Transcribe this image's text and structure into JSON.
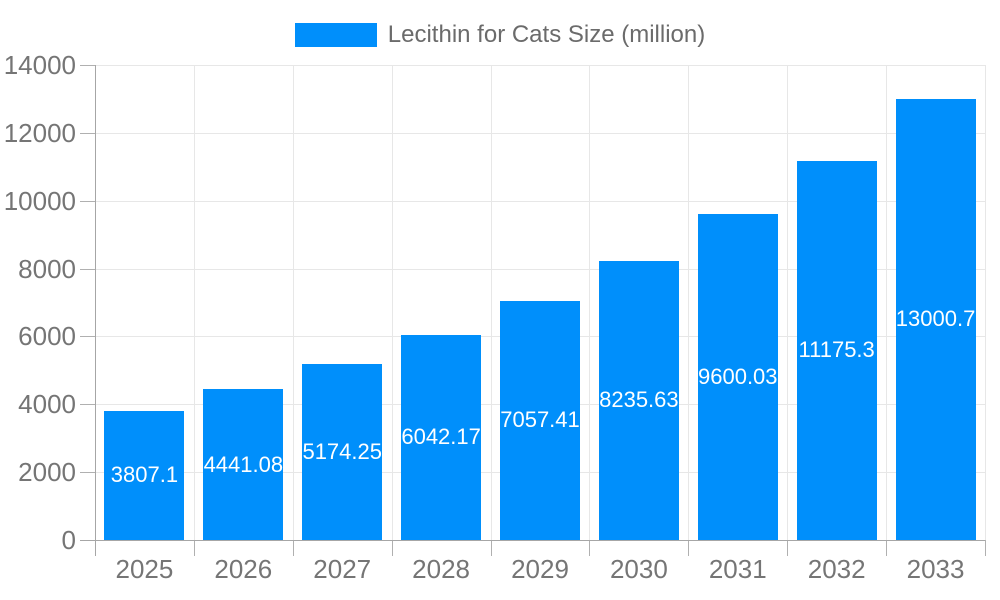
{
  "legend": {
    "label": "Lecithin for Cats Size (million)",
    "marker_color": "#008FFB"
  },
  "chart_data": {
    "type": "bar",
    "title": "Lecithin for Cats Size (million)",
    "categories": [
      "2025",
      "2026",
      "2027",
      "2028",
      "2029",
      "2030",
      "2031",
      "2032",
      "2033"
    ],
    "series": [
      {
        "name": "Lecithin for Cats Size (million)",
        "values": [
          3807.1,
          4441.08,
          5174.25,
          6042.17,
          7057.41,
          8235.63,
          9600.03,
          11175.3,
          13000.7
        ],
        "labels": [
          "3807.1",
          "4441.08",
          "5174.25",
          "6042.17",
          "7057.41",
          "8235.63",
          "9600.03",
          "11175.3",
          "13000.7"
        ]
      }
    ],
    "xlabel": "",
    "ylabel": "",
    "ylim": [
      0,
      14000
    ],
    "yticks": [
      0,
      2000,
      4000,
      6000,
      8000,
      10000,
      12000,
      14000
    ],
    "grid": true,
    "legend_position": "top",
    "bar_color": "#008FFB",
    "value_label_color": "#ffffff"
  },
  "colors": {
    "bar": "#008FFB",
    "axis_text": "#757575",
    "legend_text": "#6b6b6b",
    "gridline": "#e7e7e7",
    "axis_line": "#a6a6a6",
    "tick": "#b0b0b0",
    "background": "#ffffff"
  }
}
